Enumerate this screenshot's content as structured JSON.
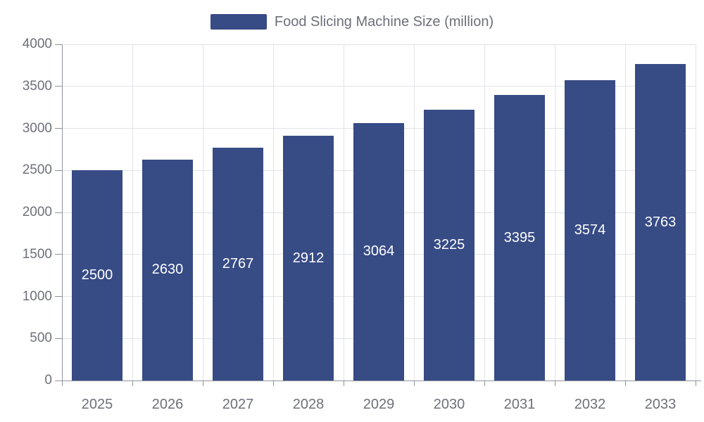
{
  "legend": {
    "label": "Food Slicing Machine Size (million)"
  },
  "chart_data": {
    "type": "bar",
    "title": "Food Slicing Machine Size (million)",
    "categories": [
      "2025",
      "2026",
      "2027",
      "2028",
      "2029",
      "2030",
      "2031",
      "2032",
      "2033"
    ],
    "series": [
      {
        "name": "Food Slicing Machine Size (million)",
        "values": [
          2500,
          2630,
          2767,
          2912,
          3064,
          3225,
          3395,
          3574,
          3763
        ]
      }
    ],
    "value_labels": "inside-center",
    "xlabel": "",
    "ylabel": "",
    "ylim": [
      0,
      4000
    ],
    "yticks": [
      0,
      500,
      1000,
      1500,
      2000,
      2500,
      3000,
      3500,
      4000
    ],
    "grid": "horizontal-and-vertical",
    "legend_position": "top-center",
    "colors": {
      "bar": "#374b85",
      "value_label": "#ffffff",
      "axis_line": "#8e939c",
      "axis_label": "#6e7079",
      "grid_line": "#e1e3e8",
      "legend_text": "#6e7079",
      "background": "#ffffff"
    }
  }
}
